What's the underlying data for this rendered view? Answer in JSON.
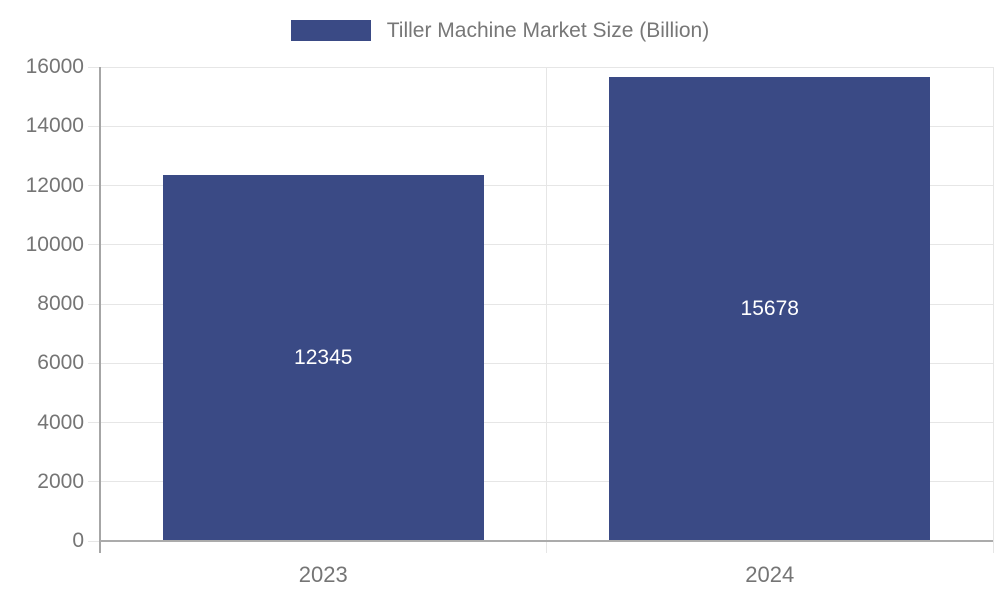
{
  "chart_data": {
    "type": "bar",
    "title": "",
    "xlabel": "",
    "ylabel": "",
    "categories": [
      "2023",
      "2024"
    ],
    "series": [
      {
        "name": "Tiller Machine Market Size (Billion)",
        "values": [
          12345,
          15678
        ]
      }
    ],
    "bar_value_labels": [
      "12345",
      "15678"
    ],
    "ylim": [
      0,
      16000
    ],
    "yticks": [
      0,
      2000,
      4000,
      6000,
      8000,
      10000,
      12000,
      14000,
      16000
    ],
    "grid": true,
    "legend_position": "top",
    "colors": {
      "bar": "#3A4A85",
      "bar_label_text": "#FFFFFF",
      "grid_line": "#E6E6E6",
      "axis_line": "#A6A6A6",
      "bottom_axis_line": "#ABABAB",
      "tick_text": "#757575",
      "legend_text": "#777777",
      "background": "#FFFFFF"
    }
  }
}
